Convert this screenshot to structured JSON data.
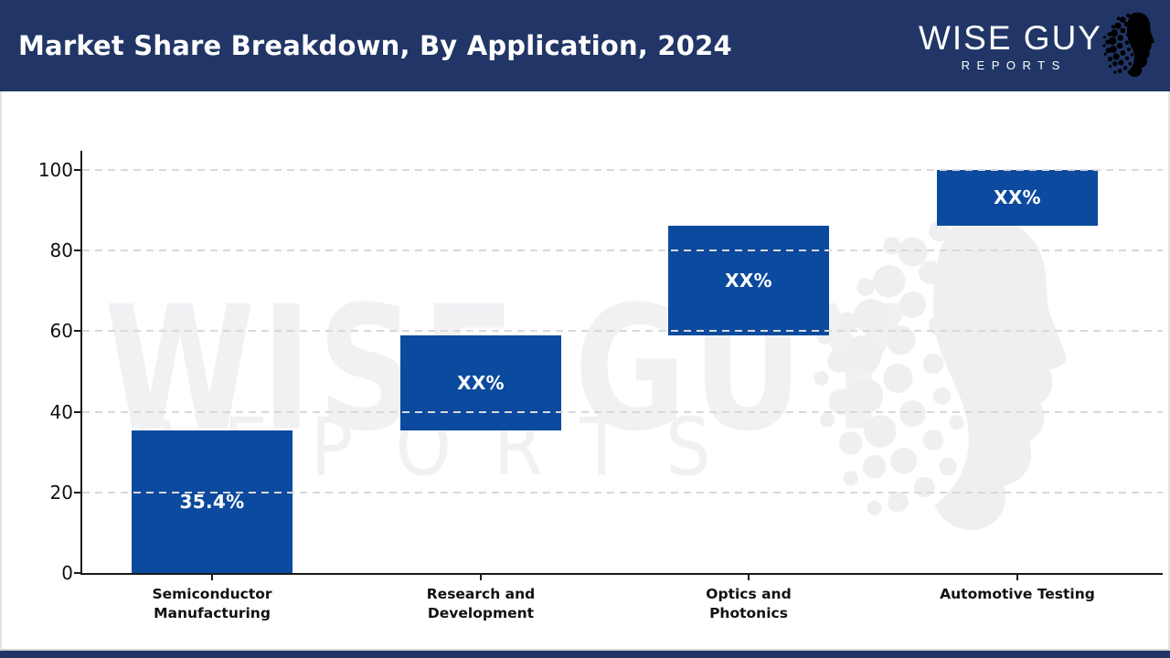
{
  "header": {
    "title": "Market Share Breakdown, By Application, 2024",
    "logo": {
      "wordmark": "WISE GUY",
      "subtext": "REPORTS"
    }
  },
  "watermark": {
    "line1": "WISE GUY",
    "line2": "REPORTS"
  },
  "colors": {
    "header_bg": "#213666",
    "footer_bg": "#213666",
    "bar": "#0B4A9E",
    "axis": "#1a1a1a",
    "grid": "#d9d9d9",
    "watermark_text": "#f1f1f4",
    "watermark_head": "#efeff2"
  },
  "chart_data": {
    "type": "bar",
    "subtype": "waterfall",
    "title": "Market Share Breakdown, By Application, 2024",
    "xlabel": "",
    "ylabel": "",
    "ylim": [
      0,
      100
    ],
    "yticks": [
      0,
      20,
      40,
      60,
      80,
      100
    ],
    "grid": "horizontal-dashed",
    "legend": "none",
    "categories": [
      [
        "Semiconductor",
        "Manufacturing"
      ],
      [
        "Research and",
        "Development"
      ],
      [
        "Optics and",
        "Photonics"
      ],
      [
        "Automotive Testing"
      ]
    ],
    "series": [
      {
        "name": "Market Share",
        "segments": [
          {
            "start": 0,
            "end": 35.4,
            "label": "35.4%"
          },
          {
            "start": 35.4,
            "end": 59.0,
            "label": "XX%"
          },
          {
            "start": 59.0,
            "end": 86.2,
            "label": "XX%"
          },
          {
            "start": 86.2,
            "end": 100,
            "label": "XX%"
          }
        ]
      }
    ]
  }
}
